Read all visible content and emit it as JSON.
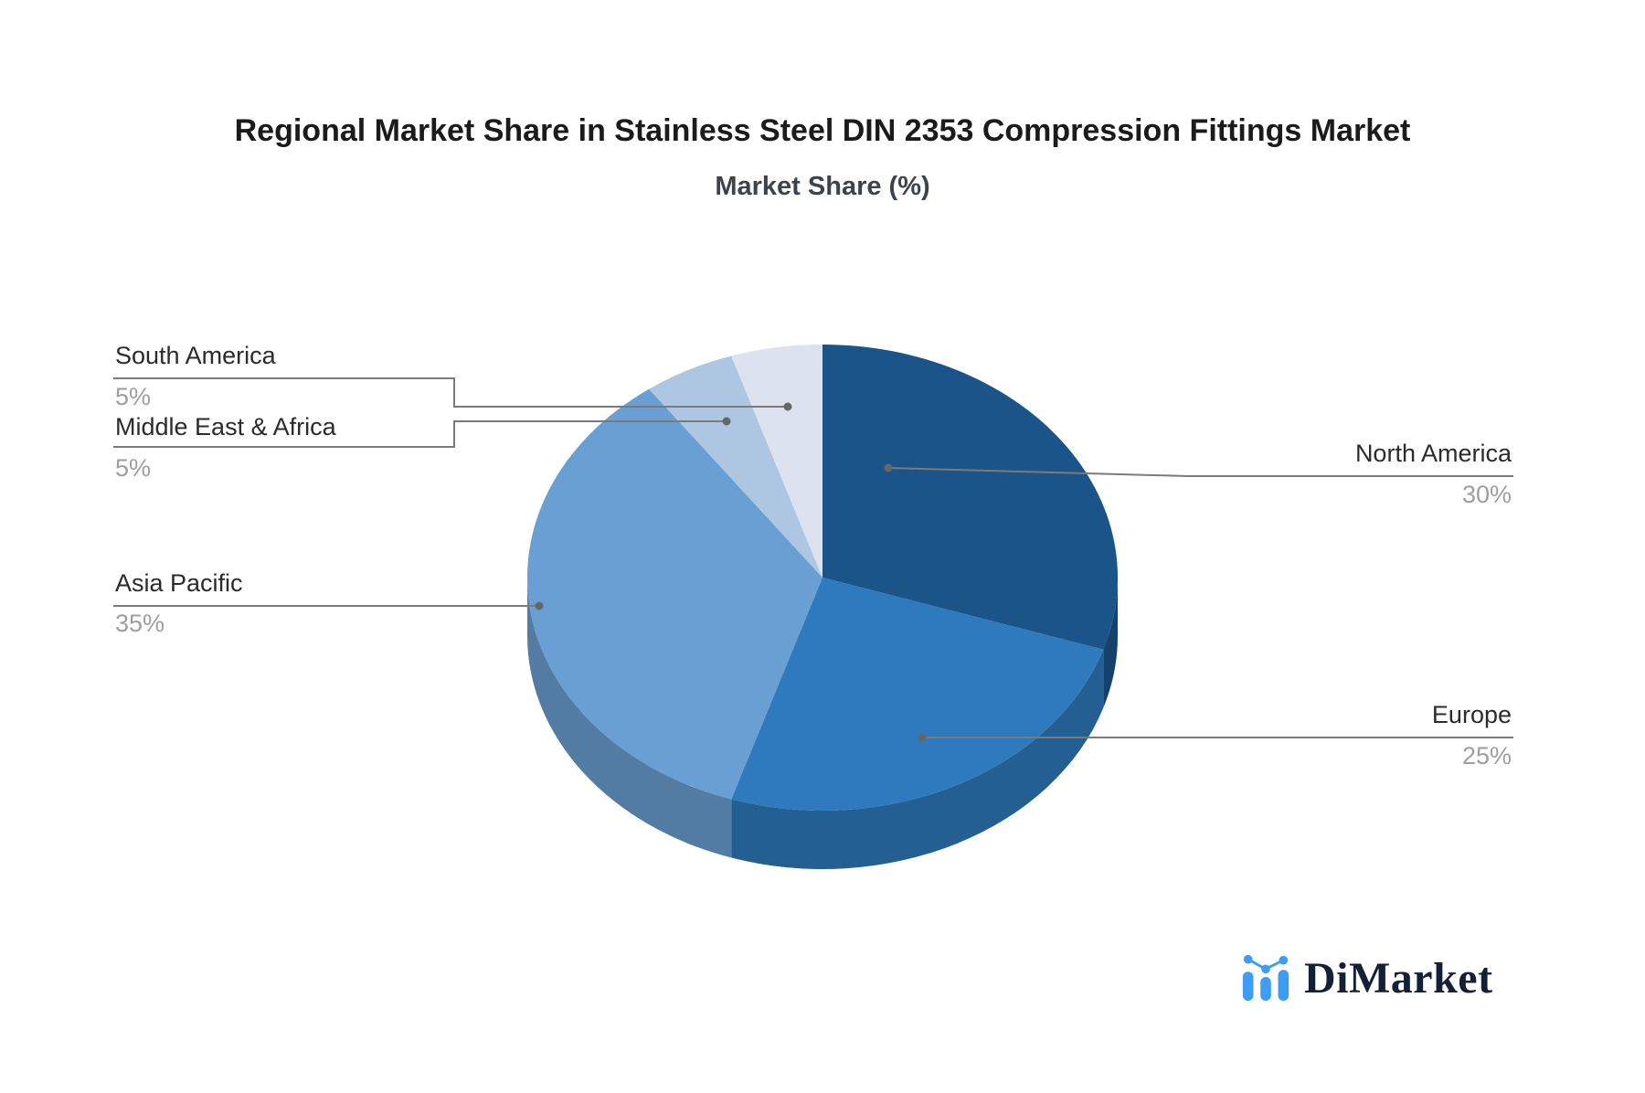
{
  "title": "Regional Market Share in Stainless Steel DIN 2353 Compression Fittings Market",
  "subtitle": "Market Share (%)",
  "chart_data": {
    "type": "pie",
    "style": "pie-3d",
    "title": "Regional Market Share in Stainless Steel DIN 2353 Compression Fittings Market",
    "subtitle": "Market Share (%)",
    "unit": "%",
    "direction": "clockwise",
    "start_angle_deg": 0,
    "labels_position": "outside-with-leader-lines",
    "legend": "none",
    "slices": [
      {
        "label": "North America",
        "value": 30,
        "display": "30%",
        "color": "#1A5488"
      },
      {
        "label": "Europe",
        "value": 25,
        "display": "25%",
        "color": "#2E7ABC"
      },
      {
        "label": "Asia Pacific",
        "value": 35,
        "display": "35%",
        "color": "#699FD2"
      },
      {
        "label": "Middle East & Africa",
        "value": 5,
        "display": "5%",
        "color": "#ADC7E3"
      },
      {
        "label": "South America",
        "value": 5,
        "display": "5%",
        "color": "#DCE3EE"
      }
    ]
  },
  "colors": {
    "background": "#FFFFFF",
    "leader_line": "#7A7A7A",
    "leader_dot": "#666666",
    "label_text": "#2B2B2B",
    "value_text": "#9E9E9E",
    "logo_blue": "#3E9DF3",
    "logo_navy": "#142038"
  },
  "logo": {
    "text": "DiMarket",
    "icon": "bar-chart-with-trend-dots"
  }
}
